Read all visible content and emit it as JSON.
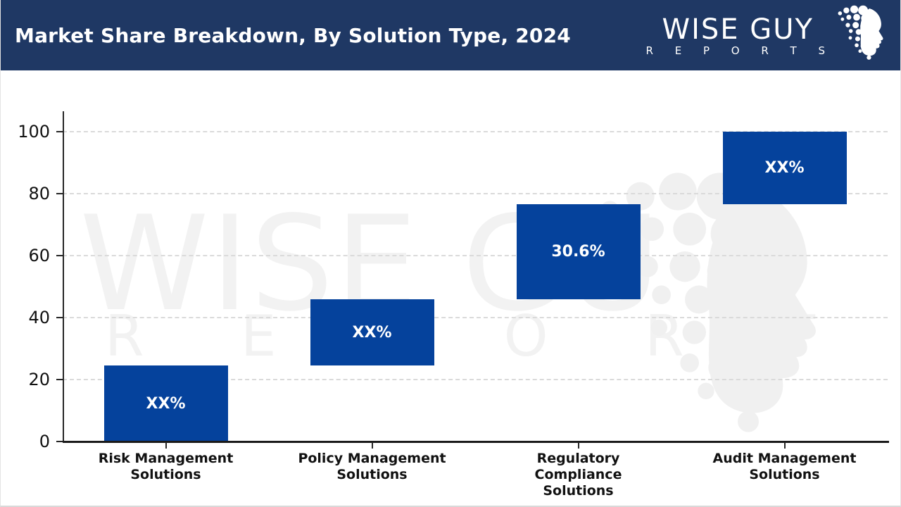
{
  "header": {
    "title": "Market Share Breakdown, By Solution Type, 2024",
    "background_color": "#1F3864",
    "logo": {
      "brand_name": "WISE GUY",
      "brand_subtitle": "R E P O R T S",
      "head_icon": "dotted-face-profile"
    }
  },
  "watermark": {
    "big_text": "WISE GU",
    "reports_text": "R E P O R T S",
    "head_icon": "dotted-face-profile"
  },
  "chart_data": {
    "type": "bar",
    "subtype": "floating-waterfall",
    "title": "Market Share Breakdown, By Solution Type, 2024",
    "categories": [
      "Risk Management\nSolutions",
      "Policy Management\nSolutions",
      "Regulatory\nCompliance\nSolutions",
      "Audit Management\nSolutions"
    ],
    "segments": [
      {
        "category": "Risk Management Solutions",
        "start": 0,
        "end": 24.5,
        "label": "XX%"
      },
      {
        "category": "Policy Management Solutions",
        "start": 24.5,
        "end": 45.9,
        "label": "XX%"
      },
      {
        "category": "Regulatory Compliance Solutions",
        "start": 45.9,
        "end": 76.5,
        "label": "30.6%"
      },
      {
        "category": "Audit Management Solutions",
        "start": 76.5,
        "end": 100,
        "label": "XX%"
      }
    ],
    "yticks": [
      0,
      20,
      40,
      60,
      80,
      100
    ],
    "ylim": [
      0,
      106
    ],
    "bar_color": "#05429C",
    "bar_label_color": "#FFFFFF",
    "grid": "horizontal-dashed",
    "legend": "none"
  }
}
